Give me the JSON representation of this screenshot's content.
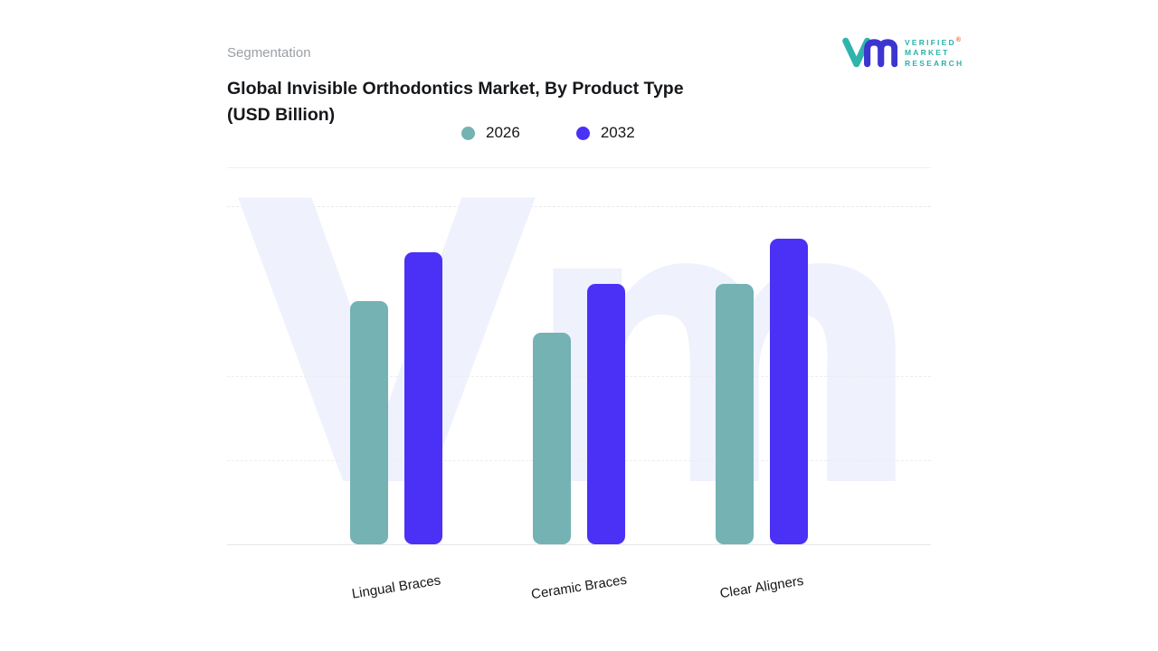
{
  "header": {
    "eyebrow": "Segmentation",
    "title": "Global Invisible Orthodontics Market, By Product Type\n(USD Billion)"
  },
  "logo": {
    "line1": "VERIFIED",
    "line2": "MARKET",
    "line3": "RESEARCH",
    "registered_mark": "®",
    "mark_colors": {
      "v": "#2fb4ac",
      "m": "#3c35cf"
    }
  },
  "legend": [
    {
      "label": "2026",
      "color": "#74b2b4"
    },
    {
      "label": "2032",
      "color": "#4a31f5"
    }
  ],
  "watermark_text": "Vm",
  "chart_data": {
    "type": "bar",
    "title": "Global Invisible Orthodontics Market, By Product Type (USD Billion)",
    "xlabel": "",
    "ylabel": "USD Billion",
    "ylim": [
      0,
      7.5
    ],
    "grid": "dashed-horizontal",
    "legend_position": "top",
    "categories": [
      "Lingual Braces",
      "Ceramic Braces",
      "Clear Aligners"
    ],
    "series": [
      {
        "name": "2026",
        "color": "#74b2b4",
        "values": [
          5.4,
          4.7,
          5.8
        ]
      },
      {
        "name": "2032",
        "color": "#4a31f5",
        "values": [
          6.5,
          5.8,
          6.8
        ]
      }
    ]
  }
}
